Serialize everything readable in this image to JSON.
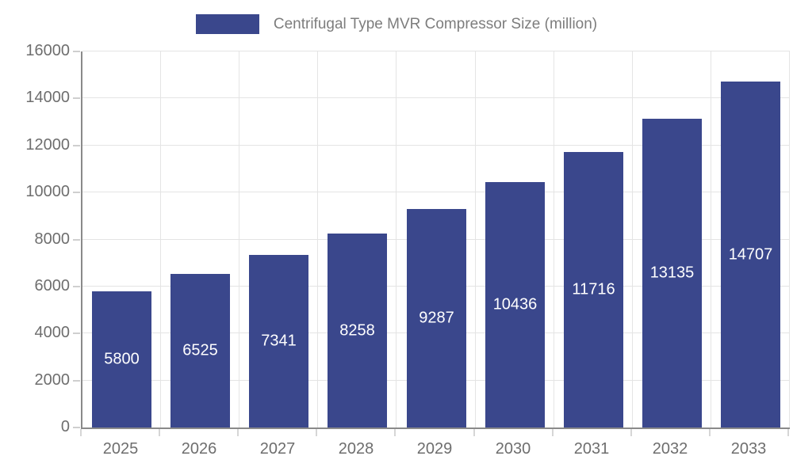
{
  "legend": {
    "label": "Centrifugal Type MVR Compressor Size (million)",
    "swatch_color": "#3A478C"
  },
  "colors": {
    "bar": "#3A478C",
    "value_label": "#ffffff",
    "axis_line": "#8a8a8a",
    "gridline": "#e4e4e4",
    "tick_text": "#6e6e6e",
    "legend_text": "#7d7d7d"
  },
  "chart_data": {
    "type": "bar",
    "title": "Centrifugal Type MVR Compressor Size (million)",
    "categories": [
      "2025",
      "2026",
      "2027",
      "2028",
      "2029",
      "2030",
      "2031",
      "2032",
      "2033"
    ],
    "values": [
      5800,
      6525,
      7341,
      8258,
      9287,
      10436,
      11716,
      13135,
      14707
    ],
    "xlabel": "",
    "ylabel": "",
    "ylim": [
      0,
      16000
    ],
    "yticks": [
      0,
      2000,
      4000,
      6000,
      8000,
      10000,
      12000,
      14000,
      16000
    ],
    "grid": true,
    "legend_position": "top",
    "value_labels": "inside-center"
  }
}
